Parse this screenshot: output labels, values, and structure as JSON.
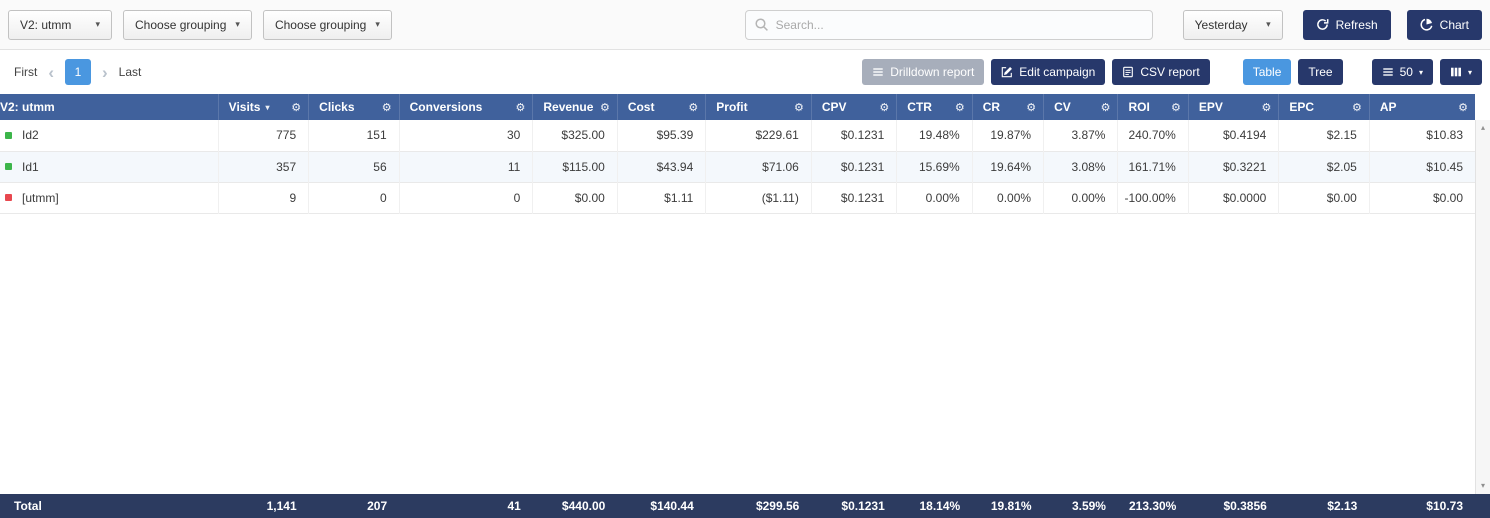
{
  "toolbar": {
    "campaign_select": "V2: utmm",
    "grouping_1": "Choose grouping",
    "grouping_2": "Choose grouping",
    "search_placeholder": "Search...",
    "date_range": "Yesterday",
    "refresh_label": "Refresh",
    "chart_label": "Chart"
  },
  "pagination": {
    "first_label": "First",
    "current_page": "1",
    "last_label": "Last"
  },
  "actions": {
    "drilldown_label": "Drilldown report",
    "edit_campaign_label": "Edit campaign",
    "csv_label": "CSV report",
    "table_label": "Table",
    "tree_label": "Tree",
    "rows_per_page": "50"
  },
  "table": {
    "first_column_header": "V2: utmm",
    "sorted_column": "Visits",
    "columns": [
      "Visits",
      "Clicks",
      "Conversions",
      "Revenue",
      "Cost",
      "Profit",
      "CPV",
      "CTR",
      "CR",
      "CV",
      "ROI",
      "EPV",
      "EPC",
      "AP"
    ],
    "rows": [
      {
        "indicator": "green",
        "name": "Id2",
        "values": [
          "775",
          "151",
          "30",
          "$325.00",
          "$95.39",
          "$229.61",
          "$0.1231",
          "19.48%",
          "19.87%",
          "3.87%",
          "240.70%",
          "$0.4194",
          "$2.15",
          "$10.83"
        ]
      },
      {
        "indicator": "green",
        "name": "Id1",
        "values": [
          "357",
          "56",
          "11",
          "$115.00",
          "$43.94",
          "$71.06",
          "$0.1231",
          "15.69%",
          "19.64%",
          "3.08%",
          "161.71%",
          "$0.3221",
          "$2.05",
          "$10.45"
        ]
      },
      {
        "indicator": "red",
        "name": "[utmm]",
        "values": [
          "9",
          "0",
          "0",
          "$0.00",
          "$1.11",
          "($1.11)",
          "$0.1231",
          "0.00%",
          "0.00%",
          "0.00%",
          "-100.00%",
          "$0.0000",
          "$0.00",
          "$0.00"
        ]
      }
    ],
    "total": {
      "label": "Total",
      "values": [
        "1,141",
        "207",
        "41",
        "$440.00",
        "$140.44",
        "$299.56",
        "$0.1231",
        "18.14%",
        "19.81%",
        "3.59%",
        "213.30%",
        "$0.3856",
        "$2.13",
        "$10.73"
      ]
    }
  },
  "icons": {
    "chevron_down": "▾",
    "sort_desc": "▾",
    "gear": "⚙",
    "chevron_left": "‹",
    "chevron_right": "›",
    "scroll_up": "▴",
    "scroll_down": "▾"
  },
  "colors": {
    "button_navy": "#27386b",
    "accent_blue": "#4a97e0",
    "table_header_blue": "#40619c",
    "total_row_navy": "#2c3b60",
    "positive_green": "#27a844",
    "negative_red": "#e8484f",
    "total_positive_green": "#3ddc5a",
    "disabled_button_gray": "#a7aebb"
  }
}
